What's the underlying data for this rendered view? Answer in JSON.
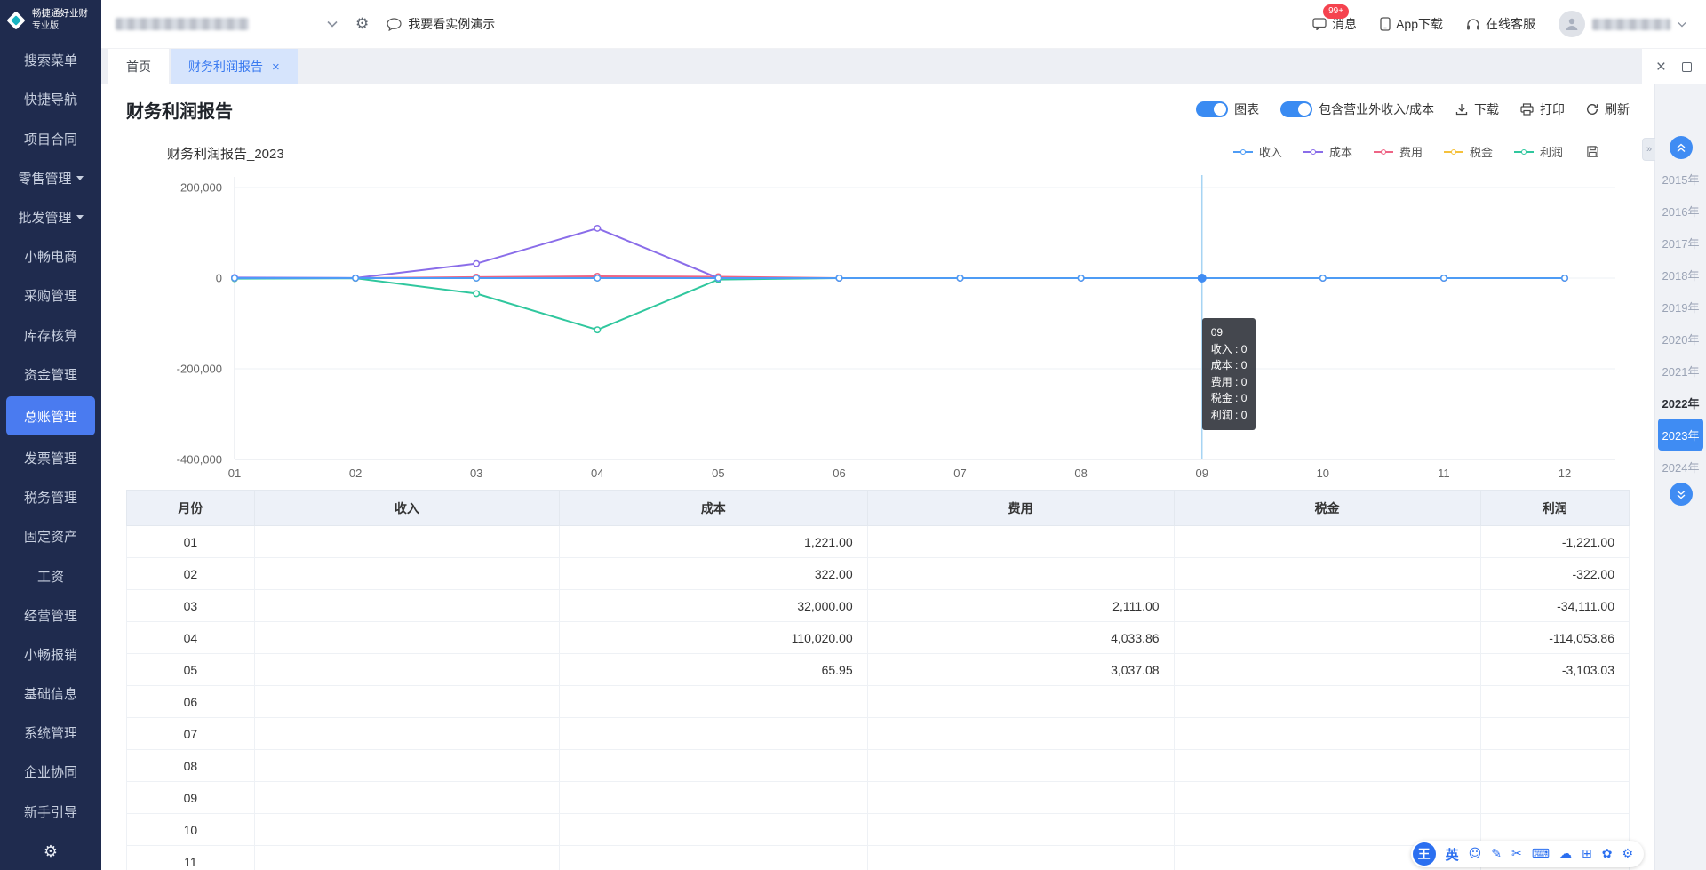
{
  "brand": {
    "name": "畅捷通好业财",
    "edition": "专业版"
  },
  "topbar": {
    "demo": "我要看实例演示",
    "messages": "消息",
    "messages_badge": "99+",
    "app_download": "App下载",
    "support": "在线客服"
  },
  "tabs": {
    "home": "首页",
    "report": "财务利润报告"
  },
  "sidebar": [
    {
      "label": "搜索菜单"
    },
    {
      "label": "快捷导航"
    },
    {
      "label": "项目合同"
    },
    {
      "label": "零售管理",
      "arrow": true
    },
    {
      "label": "批发管理",
      "arrow": true
    },
    {
      "label": "小畅电商"
    },
    {
      "label": "采购管理"
    },
    {
      "label": "库存核算"
    },
    {
      "label": "资金管理"
    },
    {
      "label": "总账管理",
      "active": true
    },
    {
      "label": "发票管理"
    },
    {
      "label": "税务管理"
    },
    {
      "label": "固定资产"
    },
    {
      "label": "工资"
    },
    {
      "label": "经营管理"
    },
    {
      "label": "小畅报销"
    },
    {
      "label": "基础信息"
    },
    {
      "label": "系统管理"
    },
    {
      "label": "企业协同"
    },
    {
      "label": "新手引导"
    }
  ],
  "page": {
    "title": "财务利润报告",
    "chart_toggle": "图表",
    "include_toggle": "包含营业外收入/成本",
    "download": "下载",
    "print": "打印",
    "refresh": "刷新"
  },
  "chart_data": {
    "type": "line",
    "title": "财务利润报告_2023",
    "x": [
      "01",
      "02",
      "03",
      "04",
      "05",
      "06",
      "07",
      "08",
      "09",
      "10",
      "11",
      "12"
    ],
    "ylim": [
      -400000,
      200000
    ],
    "yticks": [
      200000,
      0,
      -200000,
      -400000
    ],
    "grid": true,
    "legend_position": "top-right",
    "series": [
      {
        "name": "收入",
        "color": "#4e9cf5",
        "values": [
          0,
          0,
          0,
          0,
          0,
          0,
          0,
          0,
          0,
          0,
          0,
          0
        ]
      },
      {
        "name": "成本",
        "color": "#8a6de9",
        "values": [
          1221,
          322,
          32000,
          110020,
          65.95,
          0,
          0,
          0,
          0,
          0,
          0,
          0
        ]
      },
      {
        "name": "费用",
        "color": "#ee6485",
        "values": [
          0,
          0,
          2111,
          4033.86,
          3037.08,
          0,
          0,
          0,
          0,
          0,
          0,
          0
        ]
      },
      {
        "name": "税金",
        "color": "#f5c13c",
        "values": [
          0,
          0,
          0,
          0,
          0,
          0,
          0,
          0,
          0,
          0,
          0,
          0
        ]
      },
      {
        "name": "利润",
        "color": "#30c79e",
        "values": [
          -1221,
          -322,
          -34111,
          -114053.86,
          -3103.03,
          0,
          0,
          0,
          0,
          0,
          0,
          0
        ]
      }
    ],
    "tooltip": {
      "x_index": 8,
      "title": "09",
      "lines": [
        "收入 : 0",
        "成本 : 0",
        "费用 : 0",
        "税金 : 0",
        "利润 : 0"
      ]
    }
  },
  "years": {
    "items": [
      "2015年",
      "2016年",
      "2017年",
      "2018年",
      "2019年",
      "2020年",
      "2021年",
      "2022年",
      "2023年",
      "2024年"
    ],
    "active": "2023年",
    "emphasized": "2022年"
  },
  "table": {
    "headers": [
      "月份",
      "收入",
      "成本",
      "费用",
      "税金",
      "利润"
    ],
    "rows": [
      {
        "month": "01",
        "income": "",
        "cost": "1,221.00",
        "expense": "",
        "tax": "",
        "profit": "-1,221.00"
      },
      {
        "month": "02",
        "income": "",
        "cost": "322.00",
        "expense": "",
        "tax": "",
        "profit": "-322.00"
      },
      {
        "month": "03",
        "income": "",
        "cost": "32,000.00",
        "expense": "2,111.00",
        "tax": "",
        "profit": "-34,111.00"
      },
      {
        "month": "04",
        "income": "",
        "cost": "110,020.00",
        "expense": "4,033.86",
        "tax": "",
        "profit": "-114,053.86"
      },
      {
        "month": "05",
        "income": "",
        "cost": "65.95",
        "expense": "3,037.08",
        "tax": "",
        "profit": "-3,103.03"
      },
      {
        "month": "06",
        "income": "",
        "cost": "",
        "expense": "",
        "tax": "",
        "profit": ""
      },
      {
        "month": "07",
        "income": "",
        "cost": "",
        "expense": "",
        "tax": "",
        "profit": ""
      },
      {
        "month": "08",
        "income": "",
        "cost": "",
        "expense": "",
        "tax": "",
        "profit": ""
      },
      {
        "month": "09",
        "income": "",
        "cost": "",
        "expense": "",
        "tax": "",
        "profit": ""
      },
      {
        "month": "10",
        "income": "",
        "cost": "",
        "expense": "",
        "tax": "",
        "profit": ""
      },
      {
        "month": "11",
        "income": "",
        "cost": "",
        "expense": "",
        "tax": "",
        "profit": ""
      }
    ]
  },
  "ime": {
    "logo": "王",
    "mode": "英",
    "tools": [
      {
        "name": "emoji-icon",
        "glyph": "☺"
      },
      {
        "name": "pencil-icon",
        "glyph": "✎"
      },
      {
        "name": "scissors-icon",
        "glyph": "✂"
      },
      {
        "name": "keyboard-icon",
        "glyph": "⌨"
      },
      {
        "name": "cloud-icon",
        "glyph": "☁"
      },
      {
        "name": "grid-icon",
        "glyph": "⊞"
      },
      {
        "name": "skin-icon",
        "glyph": "✿"
      },
      {
        "name": "gear-icon",
        "glyph": "⚙"
      }
    ]
  }
}
